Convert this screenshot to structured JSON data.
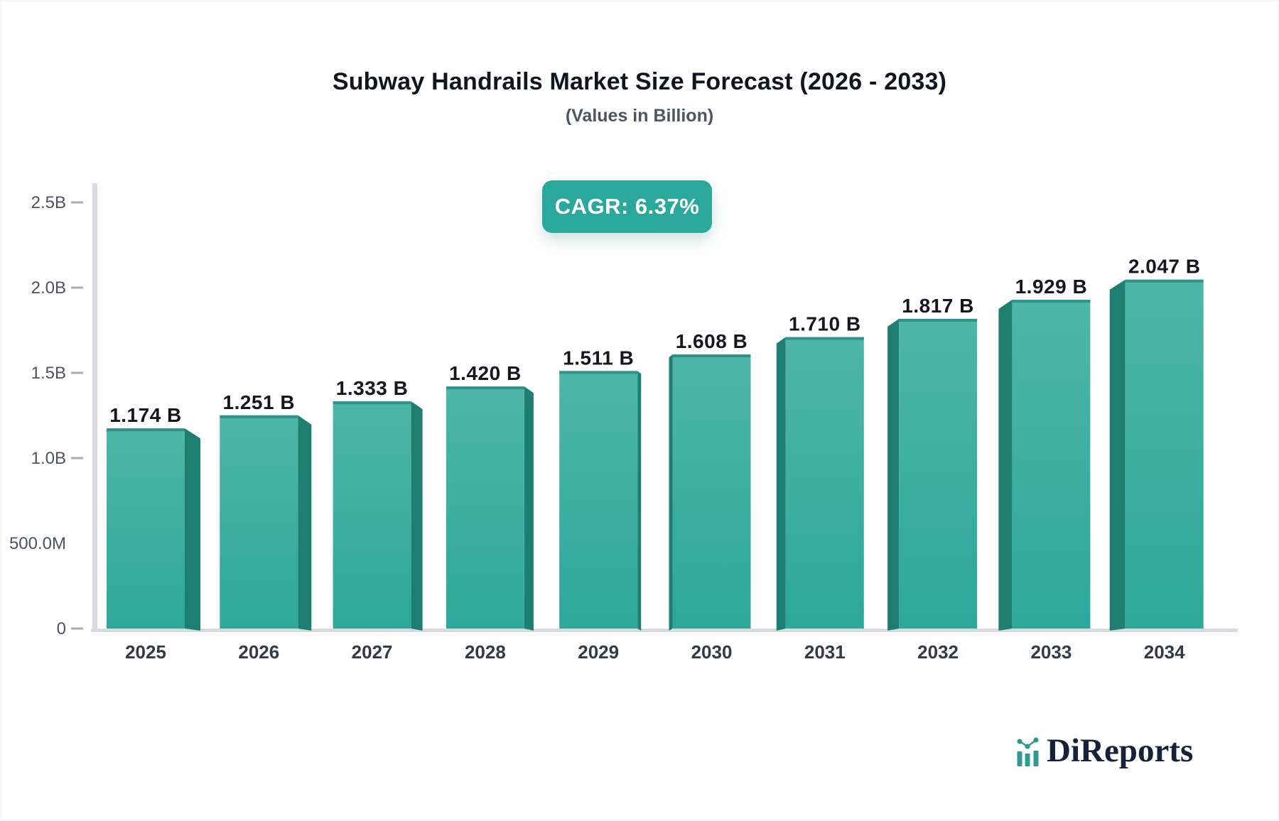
{
  "header": {
    "title": "Subway Handrails Market Size Forecast (2026 - 2033)",
    "subtitle": "(Values in Billion)",
    "cagr_label": "CAGR: 6.37%"
  },
  "brand": {
    "name": "DiReports",
    "icon": "mini-bar-chart-icon"
  },
  "colors": {
    "accent_teal": "#2aa89b",
    "bar_front_top": "#4db6a8",
    "bar_front_bottom": "#2da89a",
    "bar_side": "#1f7e72",
    "bar_top_edge": "#2e9488",
    "axis_line": "#d7dade",
    "tick_dash": "#a8aeb6",
    "logo_navy": "#16213a"
  },
  "chart_data": {
    "type": "bar",
    "title": "Subway Handrails Market Size Forecast (2026 - 2033)",
    "subtitle": "(Values in Billion)",
    "annotation": "CAGR: 6.37%",
    "categories": [
      "2025",
      "2026",
      "2027",
      "2028",
      "2029",
      "2030",
      "2031",
      "2032",
      "2033",
      "2034"
    ],
    "values": [
      1.174,
      1.251,
      1.333,
      1.42,
      1.511,
      1.608,
      1.71,
      1.817,
      1.929,
      2.047
    ],
    "value_labels": [
      "1.174 B",
      "1.251 B",
      "1.333 B",
      "1.420 B",
      "1.511 B",
      "1.608 B",
      "1.710 B",
      "1.817 B",
      "1.929 B",
      "2.047 B"
    ],
    "unit": "Billion",
    "xlabel": "",
    "ylabel": "",
    "ylim": [
      0,
      2.5
    ],
    "grid": false,
    "legend": null,
    "yticks": [
      {
        "label": "2.5B",
        "value": 2.5,
        "dash": true
      },
      {
        "label": "2.0B",
        "value": 2.0,
        "dash": true
      },
      {
        "label": "1.5B",
        "value": 1.5,
        "dash": true
      },
      {
        "label": "1.0B",
        "value": 1.0,
        "dash": true
      },
      {
        "label": "500.0M",
        "value": 0.5,
        "dash": false
      },
      {
        "label": "0",
        "value": 0.0,
        "dash": true
      }
    ]
  }
}
